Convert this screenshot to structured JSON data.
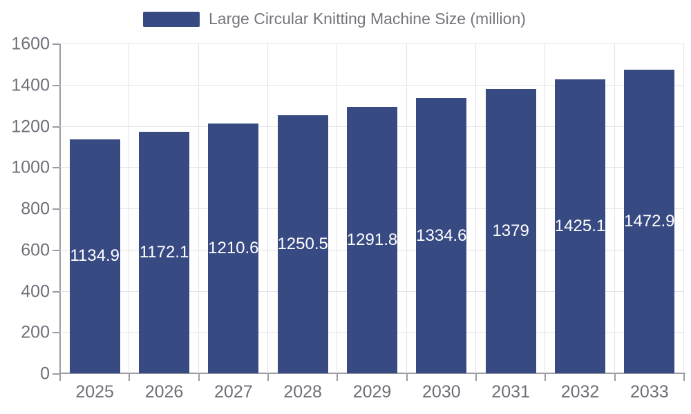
{
  "legend": {
    "label": "Large Circular Knitting Machine Size (million)",
    "swatch_color": "#384a82"
  },
  "chart_data": {
    "type": "bar",
    "title": "",
    "xlabel": "",
    "ylabel": "",
    "categories": [
      "2025",
      "2026",
      "2027",
      "2028",
      "2029",
      "2030",
      "2031",
      "2032",
      "2033"
    ],
    "series": [
      {
        "name": "Large Circular Knitting Machine Size (million)",
        "values": [
          1134.9,
          1172.1,
          1210.6,
          1250.5,
          1291.8,
          1334.6,
          1379,
          1425.1,
          1472.9
        ],
        "value_labels": [
          "1134.9",
          "1172.1",
          "1210.6",
          "1250.5",
          "1291.8",
          "1334.6",
          "1379",
          "1425.1",
          "1472.9"
        ],
        "color": "#384a82"
      }
    ],
    "ylim": [
      0,
      1600
    ],
    "yticks": [
      0,
      200,
      400,
      600,
      800,
      1000,
      1200,
      1400,
      1600
    ],
    "grid": true,
    "legend_position": "top",
    "value_label_color": "#ffffff",
    "axis_label_color": "#6e7079",
    "axis_line_color": "#9b9ba3",
    "gridline_color": "#e3e3e9"
  }
}
